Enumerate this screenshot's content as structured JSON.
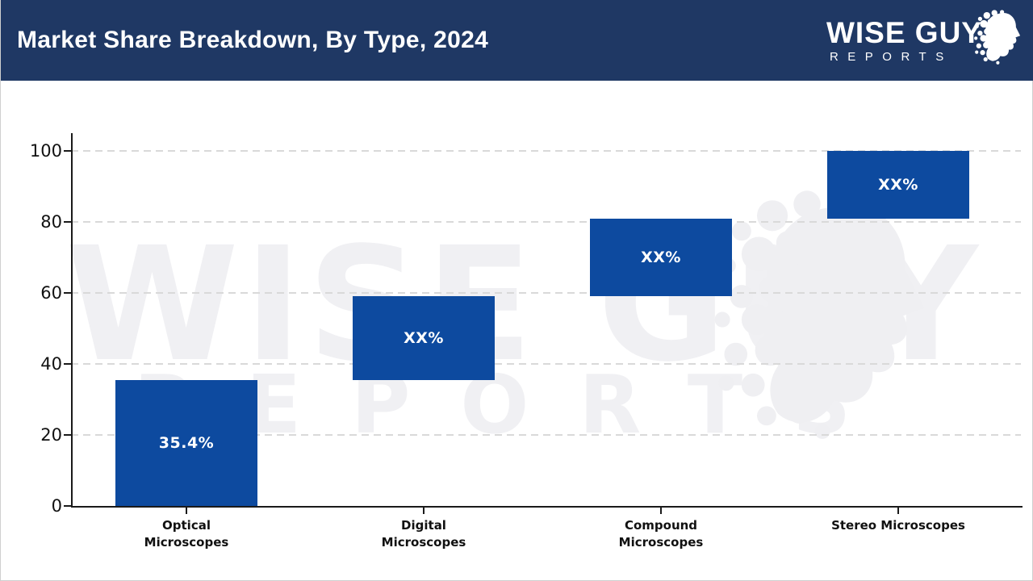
{
  "header": {
    "title": "Market Share Breakdown, By Type, 2024",
    "logo": {
      "wordmark": "WISE GUY",
      "subtext": "REPORTS"
    },
    "bg_color": "#1f3864"
  },
  "watermark": {
    "line1": "WISE GUY",
    "line2": "REPORTS"
  },
  "chart_data": {
    "type": "bar",
    "subtype": "waterfall",
    "title": "Market Share Breakdown, By Type, 2024",
    "categories": [
      "Optical Microscopes",
      "Digital Microscopes",
      "Compound Microscopes",
      "Stereo Microscopes"
    ],
    "category_lines": [
      [
        "Optical",
        "Microscopes"
      ],
      [
        "Digital",
        "Microscopes"
      ],
      [
        "Compound",
        "Microscopes"
      ],
      [
        "Stereo Microscopes"
      ]
    ],
    "segments": [
      {
        "category": "Optical Microscopes",
        "start": 0,
        "end": 35.4,
        "label": "35.4%"
      },
      {
        "category": "Digital Microscopes",
        "start": 35.4,
        "end": 59,
        "label": "XX%"
      },
      {
        "category": "Compound Microscopes",
        "start": 59,
        "end": 81,
        "label": "XX%"
      },
      {
        "category": "Stereo Microscopes",
        "start": 81,
        "end": 100,
        "label": "XX%"
      }
    ],
    "ylim": [
      0,
      100
    ],
    "yticks": [
      0,
      20,
      40,
      60,
      80,
      100
    ],
    "grid": "horizontal-dashed",
    "legend": "none",
    "bar_color": "#0d4a9f",
    "bar_label_color": "#ffffff",
    "axis_color": "#1a1a1a",
    "gridline_color": "#d9d9d9"
  }
}
